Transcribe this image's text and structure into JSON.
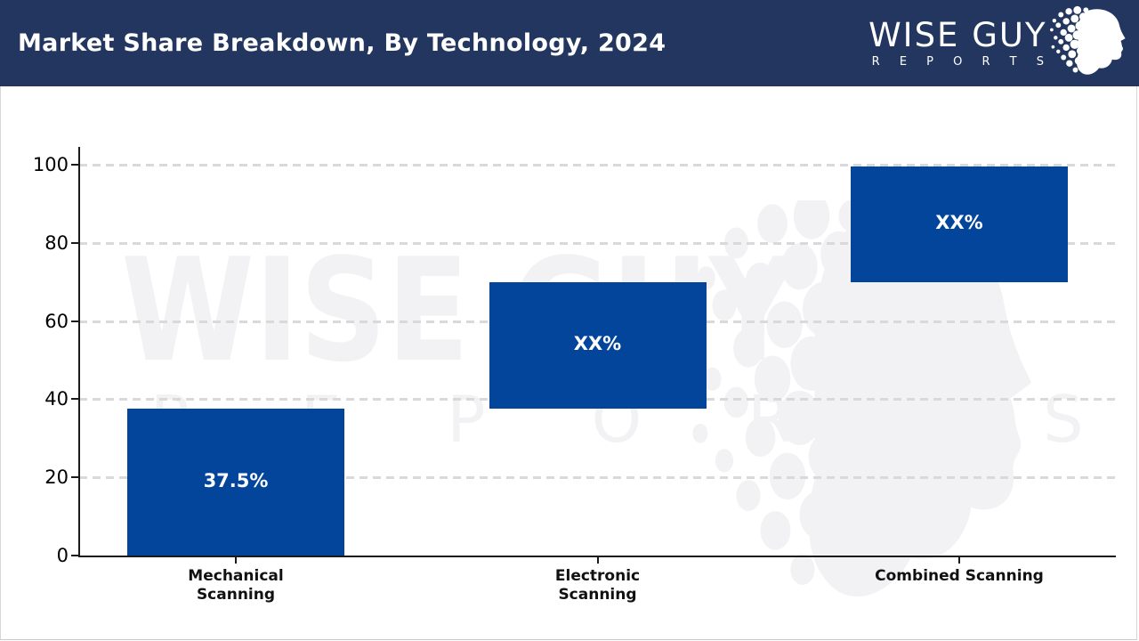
{
  "header": {
    "title": "Market Share Breakdown, By Technology, 2024",
    "background_color": "#22365f",
    "logo": {
      "line1": "WISE GUY",
      "line2": "R E P O R T S",
      "face_icon": "dotted-head-profile"
    }
  },
  "watermark": {
    "line1": "WISE GUY",
    "line2": "REPORTS",
    "face_icon": "dotted-head-profile",
    "color": "#f2f2f4"
  },
  "chart_data": {
    "type": "bar",
    "subtype": "floating-waterfall",
    "title": "Market Share Breakdown, By Technology, 2024",
    "categories": [
      [
        "Mechanical",
        "Scanning"
      ],
      [
        "Electronic",
        "Scanning"
      ],
      [
        "Combined Scanning"
      ]
    ],
    "bars": [
      {
        "category": "Mechanical Scanning",
        "label": "37.5%",
        "start": 0,
        "end": 37.5
      },
      {
        "category": "Electronic Scanning",
        "label": "XX%",
        "start": 37.5,
        "end": 70
      },
      {
        "category": "Combined Scanning",
        "label": "XX%",
        "start": 70,
        "end": 99.5
      }
    ],
    "y_ticks": [
      0,
      20,
      40,
      60,
      80,
      100
    ],
    "ylim": [
      0,
      105
    ],
    "xlabel": "",
    "ylabel": "",
    "legend": "none",
    "grid": "horizontal-dashed",
    "bar_color": "#04459c",
    "bar_label_color": "#ffffff",
    "gridline_color": "#d9d9d9",
    "axis_color": "#1a1a1a"
  }
}
